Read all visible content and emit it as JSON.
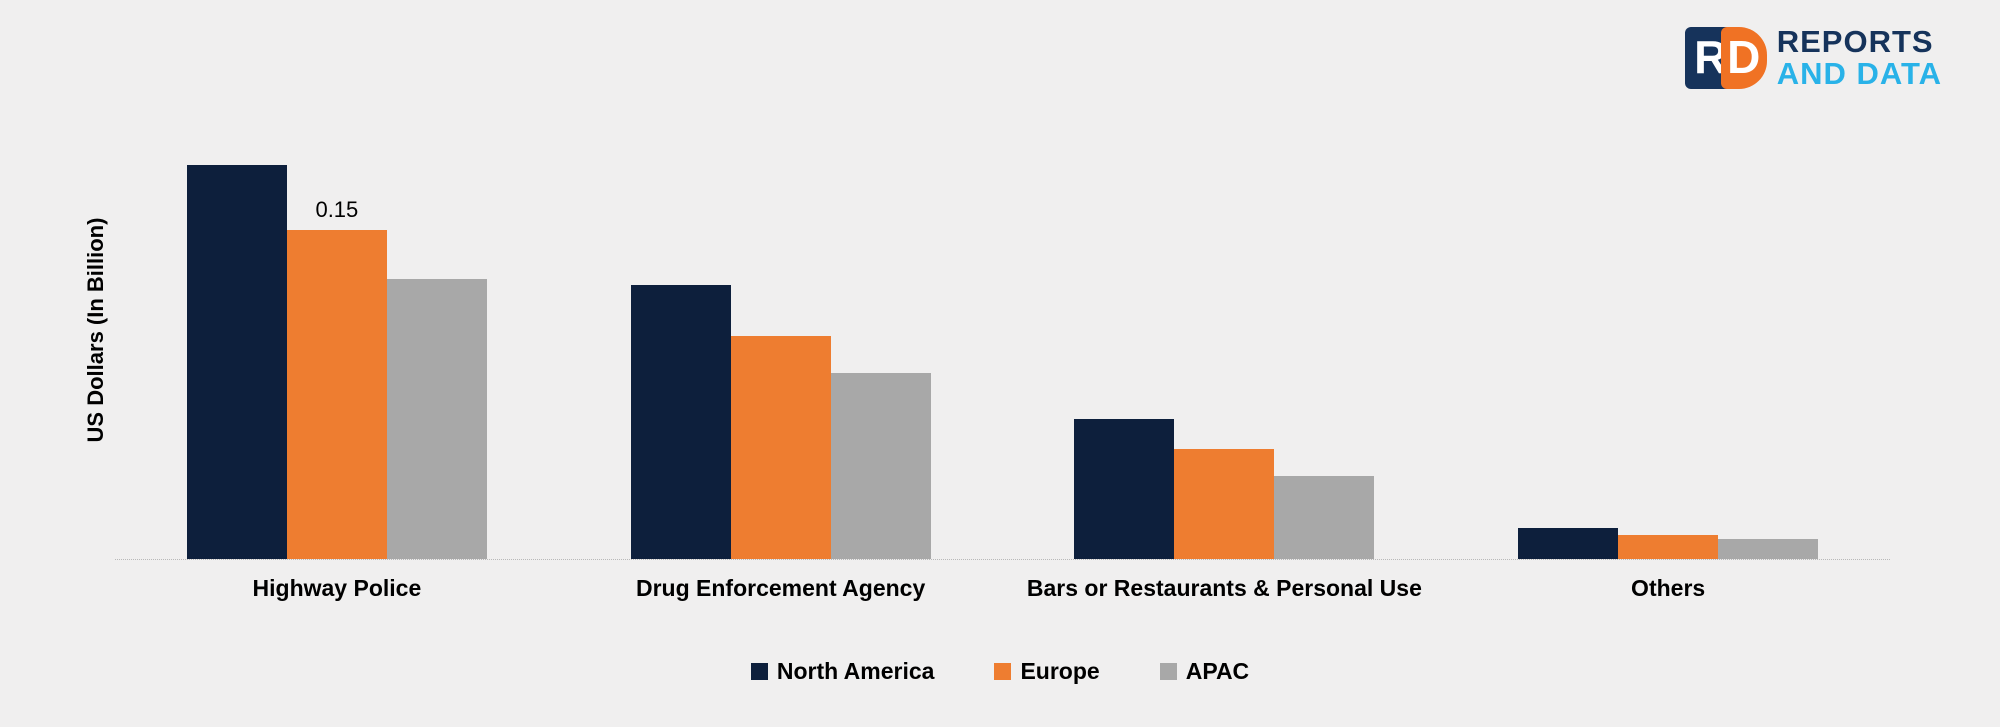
{
  "logo": {
    "mark_letter_r": "R",
    "mark_letter_d": "D",
    "line1": "REPORTS",
    "line2": "AND DATA",
    "colors": {
      "navy": "#16335b",
      "orange": "#f07224",
      "light_blue": "#29b2e8"
    }
  },
  "chart_data": {
    "type": "bar",
    "title": "",
    "xlabel": "",
    "ylabel": "US Dollars  (In Billion)",
    "ylim": [
      0,
      0.2
    ],
    "grid": false,
    "legend_position": "bottom",
    "categories": [
      "Highway Police",
      "Drug Enforcement Agency",
      "Bars or Restaurants & Personal Use",
      "Others"
    ],
    "series": [
      {
        "name": "North America",
        "color": "#0d1f3c",
        "values": [
          0.18,
          0.125,
          0.064,
          0.014
        ]
      },
      {
        "name": "Europe",
        "color": "#ee7d30",
        "values": [
          0.15,
          0.102,
          0.05,
          0.011
        ]
      },
      {
        "name": "APAC",
        "color": "#a8a8a8",
        "values": [
          0.128,
          0.085,
          0.038,
          0.009
        ]
      }
    ],
    "annotations": [
      {
        "category_index": 0,
        "series_index": 1,
        "text": "0.15"
      }
    ]
  },
  "layout_hints": {
    "note": "grouped vertical bars, dotted baseline axis, no y-axis ticks shown"
  }
}
